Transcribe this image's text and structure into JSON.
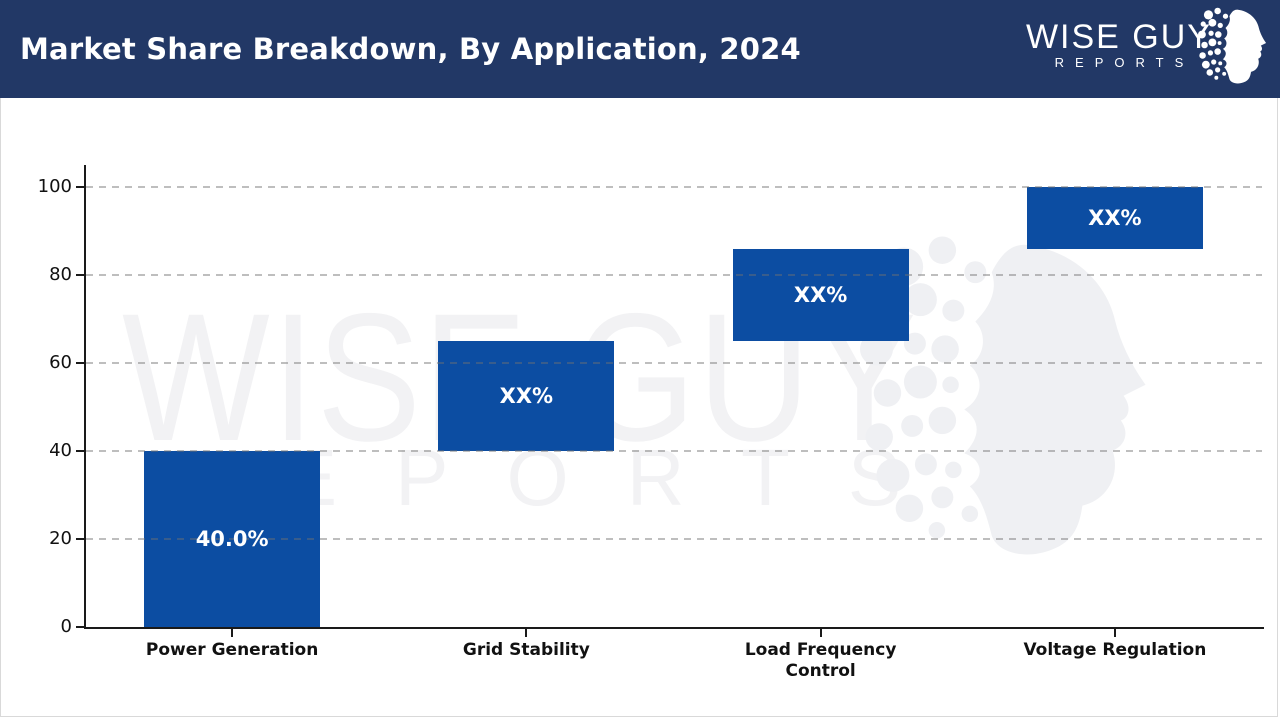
{
  "header": {
    "title": "Market Share Breakdown, By Application, 2024",
    "bg_color": "#223866",
    "logo": {
      "line1": "WISE GUY",
      "line2": "REPORTS"
    }
  },
  "watermark": {
    "line1": "WISE GUY",
    "line2": "REPORTS"
  },
  "chart_data": {
    "type": "bar",
    "subtype": "waterfall",
    "title": "Market Share Breakdown, By Application, 2024",
    "categories": [
      "Power Generation",
      "Grid Stability",
      "Load Frequency\nControl",
      "Voltage Regulation"
    ],
    "segments": [
      {
        "category": "Power Generation",
        "base": 0,
        "value": 40,
        "label": "40.0%"
      },
      {
        "category": "Grid Stability",
        "base": 40,
        "value": 25,
        "label": "XX%"
      },
      {
        "category": "Load Frequency Control",
        "base": 65,
        "value": 21,
        "label": "XX%"
      },
      {
        "category": "Voltage Regulation",
        "base": 86,
        "value": 14,
        "label": "XX%"
      }
    ],
    "yticks": [
      0,
      20,
      40,
      60,
      80,
      100
    ],
    "ylim": [
      0,
      100
    ],
    "xlabel": "",
    "ylabel": "",
    "grid": true,
    "grid_style": "dashed",
    "legend": false,
    "bar_color": "#0c4da2",
    "bar_label_color": "#ffffff",
    "axis_color": "#1a1a1a"
  }
}
